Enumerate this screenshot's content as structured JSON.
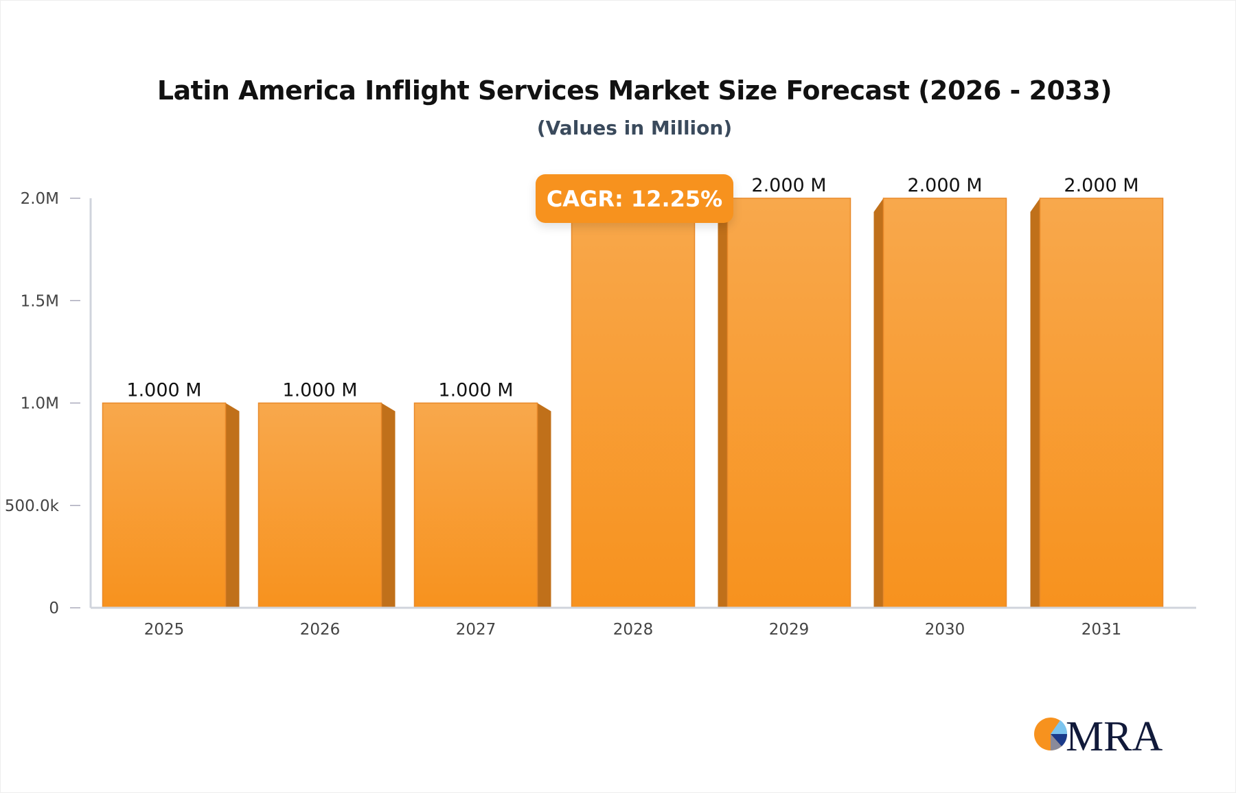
{
  "chart_data": {
    "type": "bar",
    "title": "Latin America Inflight Services Market Size Forecast (2026 - 2033)",
    "subtitle": "(Values in Million)",
    "categories": [
      "2025",
      "2026",
      "2027",
      "2028",
      "2029",
      "2030",
      "2031"
    ],
    "values": [
      1000000,
      1000000,
      1000000,
      2000000,
      2000000,
      2000000,
      2000000
    ],
    "data_labels": [
      "1.000 M",
      "1.000 M",
      "1.000 M",
      "",
      "2.000 M",
      "2.000 M",
      "2.000 M"
    ],
    "ylim": [
      0,
      2000000
    ],
    "yticks": [
      0,
      500000,
      1000000,
      1500000,
      2000000
    ],
    "ytick_labels": [
      "0",
      "500.0k",
      "1.0M",
      "1.5M",
      "2.0M"
    ],
    "grid": false,
    "annotation": "CAGR: 12.25%",
    "colors": {
      "bar": "#f7a24a",
      "bar_bottom": "#f7921e",
      "bar_side": "#c0701a",
      "axis": "#d0d4dc",
      "badge": "#f7921e"
    }
  },
  "logo": {
    "text": "MRA"
  }
}
